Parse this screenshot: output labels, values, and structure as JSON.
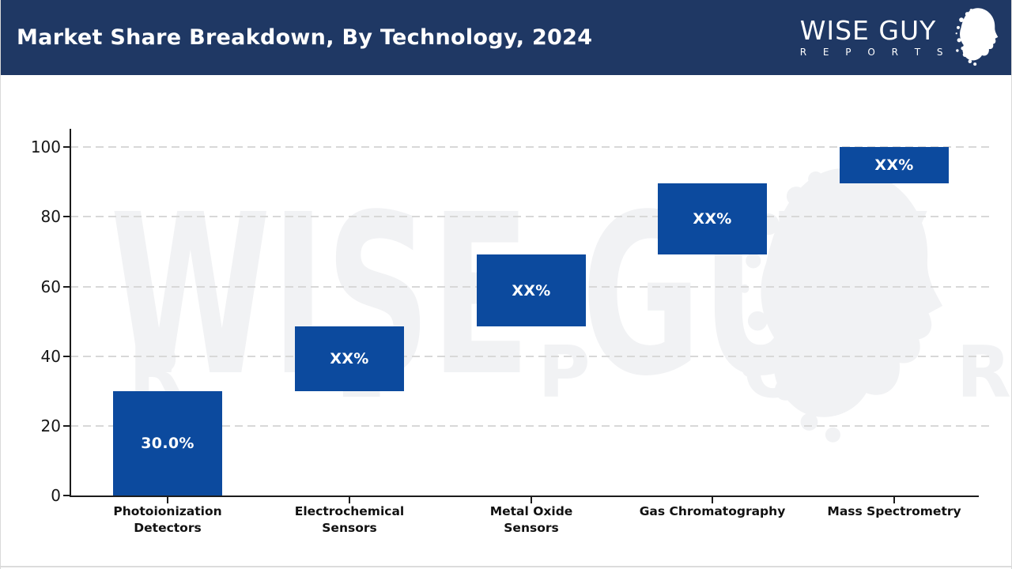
{
  "header": {
    "title": "Market Share Breakdown, By Technology, 2024",
    "logo": {
      "line1": "WISE GUY",
      "line2": "R E P O R T S"
    },
    "bg_color": "#1f3864"
  },
  "watermark": {
    "line1": "WISE GUY",
    "line2": "R E P O R T S"
  },
  "chart_data": {
    "type": "bar",
    "subtype": "waterfall",
    "title": "Market Share Breakdown, By Technology, 2024",
    "categories": [
      "Photoionization\nDetectors",
      "Electrochemical\nSensors",
      "Metal Oxide\nSensors",
      "Gas Chromatography",
      "Mass Spectrometry"
    ],
    "segment_start": [
      0,
      30,
      48.5,
      69.2,
      89.7
    ],
    "segment_end": [
      30,
      48.5,
      69.2,
      89.7,
      100
    ],
    "segment_values": [
      30.0,
      18.5,
      20.7,
      20.5,
      10.3
    ],
    "bar_labels": [
      "30.0%",
      "XX%",
      "XX%",
      "XX%",
      "XX%"
    ],
    "yticks": [
      0,
      20,
      40,
      60,
      80,
      100
    ],
    "ylim": [
      0,
      105
    ],
    "xlabel": "",
    "ylabel": "",
    "grid": "horizontal-dashed",
    "legend": "none",
    "bar_color": "#0c4a9e",
    "bar_label_color": "#ffffff",
    "grid_color": "#d8d8d8",
    "axis_color": "#1c1c1c"
  }
}
